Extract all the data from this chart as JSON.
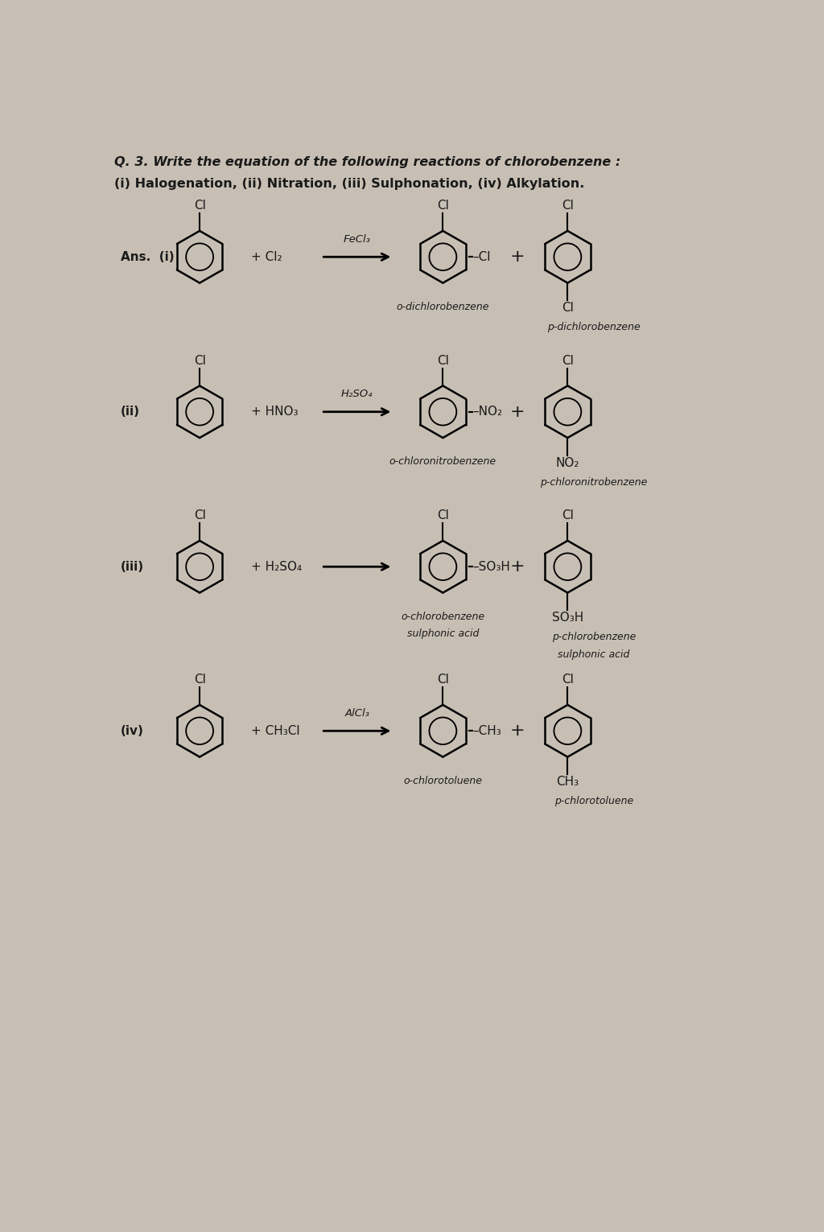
{
  "title_line1": "Q. 3. Write the equation of the following reactions of chlorobenzene :",
  "title_line2": "(i) Halogenation, (ii) Nitration, (iii) Sulphonation, (iv) Alkylation.",
  "bg_color": "#c8bfb4",
  "text_color": "#1a1a1a",
  "reactions": [
    {
      "label": "Ans.  (i)",
      "reagent": "+ Cl₂",
      "condition": "FeCl₃",
      "products": [
        "o-dichlorobenzene",
        "p-dichlorobenzene"
      ],
      "product1_side": "–Cl",
      "product2_bot": "Cl"
    },
    {
      "label": "(ii)",
      "reagent": "+ HNO₃",
      "condition": "H₂SO₄",
      "products": [
        "o-chloronitrobenzene",
        "p-chloronitrobenzene"
      ],
      "product1_side": "–NO₂",
      "product2_bot": "NO₂"
    },
    {
      "label": "(iii)",
      "reagent": "+ H₂SO₄",
      "condition": "",
      "products": [
        "o-chlorobenzene\nsulphonic acid",
        "p-chlorobenzene\nsulphonic acid"
      ],
      "product1_side": "–SO₃H",
      "product2_bot": "SO₃H"
    },
    {
      "label": "(iv)",
      "reagent": "+ CH₃Cl",
      "condition": "AlCl₃",
      "products": [
        "o-chlorotoluene",
        "p-chlorotoluene"
      ],
      "product1_side": "–CH₃",
      "product2_bot": "CH₃"
    }
  ]
}
